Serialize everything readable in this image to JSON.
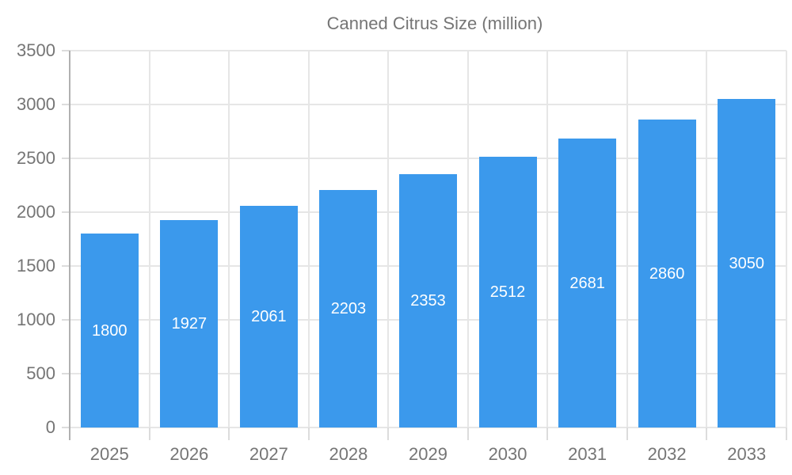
{
  "legend": {
    "label": "Canned Citrus Size (million)"
  },
  "colors": {
    "bar": "#3b99ec",
    "grid": "#e6e6e6",
    "axis": "#b0b0b0",
    "tick": "#dcdcdc",
    "text": "#757575",
    "bar_label": "#ffffff",
    "background": "#ffffff"
  },
  "chart_data": {
    "type": "bar",
    "title": "Canned Citrus Size (million)",
    "series_name": "Canned Citrus Size (million)",
    "categories": [
      "2025",
      "2026",
      "2027",
      "2028",
      "2029",
      "2030",
      "2031",
      "2032",
      "2033"
    ],
    "values": [
      1800,
      1927,
      2061,
      2203,
      2353,
      2512,
      2681,
      2860,
      3050
    ],
    "xlabel": "",
    "ylabel": "",
    "ylim": [
      0,
      3500
    ],
    "yticks": [
      0,
      500,
      1000,
      1500,
      2000,
      2500,
      3000,
      3500
    ],
    "grid": true,
    "legend_position": "top",
    "bar_labels_inside": true
  }
}
